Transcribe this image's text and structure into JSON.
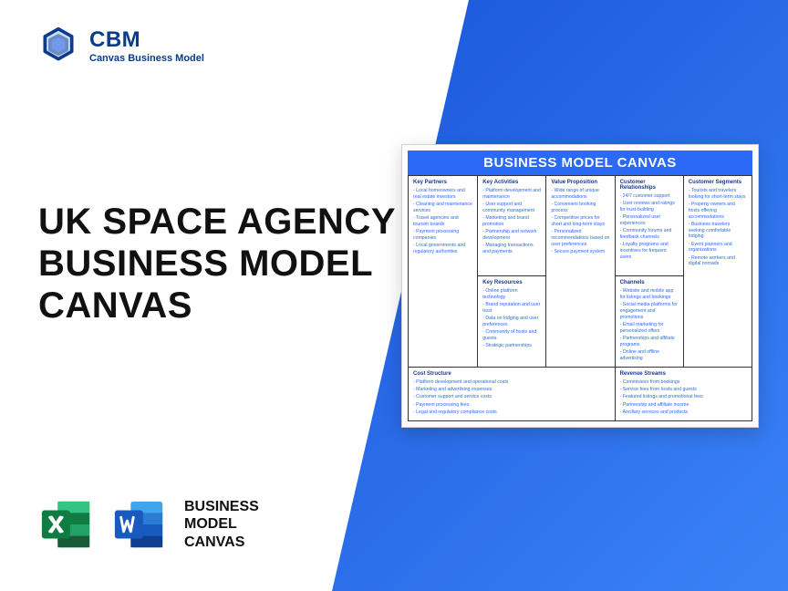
{
  "brand": {
    "name": "CBM",
    "sub": "Canvas Business Model",
    "color": "#0a3b8c"
  },
  "headline": {
    "l1": "UK SPACE AGENCY",
    "l2": "BUSINESS MODEL",
    "l3": "CANVAS"
  },
  "apps": {
    "label_l1": "BUSINESS",
    "label_l2": "MODEL",
    "label_l3": "CANVAS"
  },
  "canvas": {
    "title": "BUSINESS MODEL CANVAS",
    "title_bg": "#2a6af6",
    "text_color": "#2a6af6",
    "key_partners": {
      "h": "Key Partners",
      "items": [
        "Local homeowners and real estate investors",
        "Cleaning and maintenance services",
        "Travel agencies and tourism boards",
        "Payment processing companies",
        "Local governments and regulatory authorities"
      ]
    },
    "key_activities": {
      "h": "Key Activities",
      "items": [
        "Platform development and maintenance",
        "User support and community management",
        "Marketing and brand promotion",
        "Partnership and network development",
        "Managing transactions and payments"
      ]
    },
    "value_proposition": {
      "h": "Value Proposition",
      "items": [
        "Wide range of unique accommodations",
        "Convenient booking process",
        "Competitive prices for short and long-term stays",
        "Personalized recommendations based on user preferences",
        "Secure payment system"
      ]
    },
    "customer_relationships": {
      "h": "Customer Relationships",
      "items": [
        "24/7 customer support",
        "User reviews and ratings for trust-building",
        "Personalized user experiences",
        "Community forums and feedback channels",
        "Loyalty programs and incentives for frequent users"
      ]
    },
    "customer_segments": {
      "h": "Customer Segments",
      "items": [
        "Tourists and travelers looking for short-term stays",
        "Property owners and hosts offering accommodations",
        "Business travelers seeking comfortable lodging",
        "Event planners and organizations",
        "Remote workers and digital nomads"
      ]
    },
    "key_resources": {
      "h": "Key Resources",
      "items": [
        "Online platform technology",
        "Brand reputation and user trust",
        "Data on lodging and user preferences",
        "Community of hosts and guests",
        "Strategic partnerships"
      ]
    },
    "channels": {
      "h": "Channels",
      "items": [
        "Website and mobile app for listings and bookings",
        "Social media platforms for engagement and promotions",
        "Email marketing for personalized offers",
        "Partnerships and affiliate programs",
        "Online and offline advertising"
      ]
    },
    "cost_structure": {
      "h": "Cost Structure",
      "items": [
        "Platform development and operational costs",
        "Marketing and advertising expenses",
        "Customer support and service costs",
        "Payment processing fees",
        "Legal and regulatory compliance costs"
      ]
    },
    "revenue_streams": {
      "h": "Revenue Streams",
      "items": [
        "Commission from bookings",
        "Service fees from hosts and guests",
        "Featured listings and promotional fees",
        "Partnership and affiliate income",
        "Ancillary services and products"
      ]
    }
  },
  "colors": {
    "excel": "#107c41",
    "word": "#185abd",
    "diagonal_start": "#1a56db",
    "diagonal_end": "#3b82f6"
  }
}
